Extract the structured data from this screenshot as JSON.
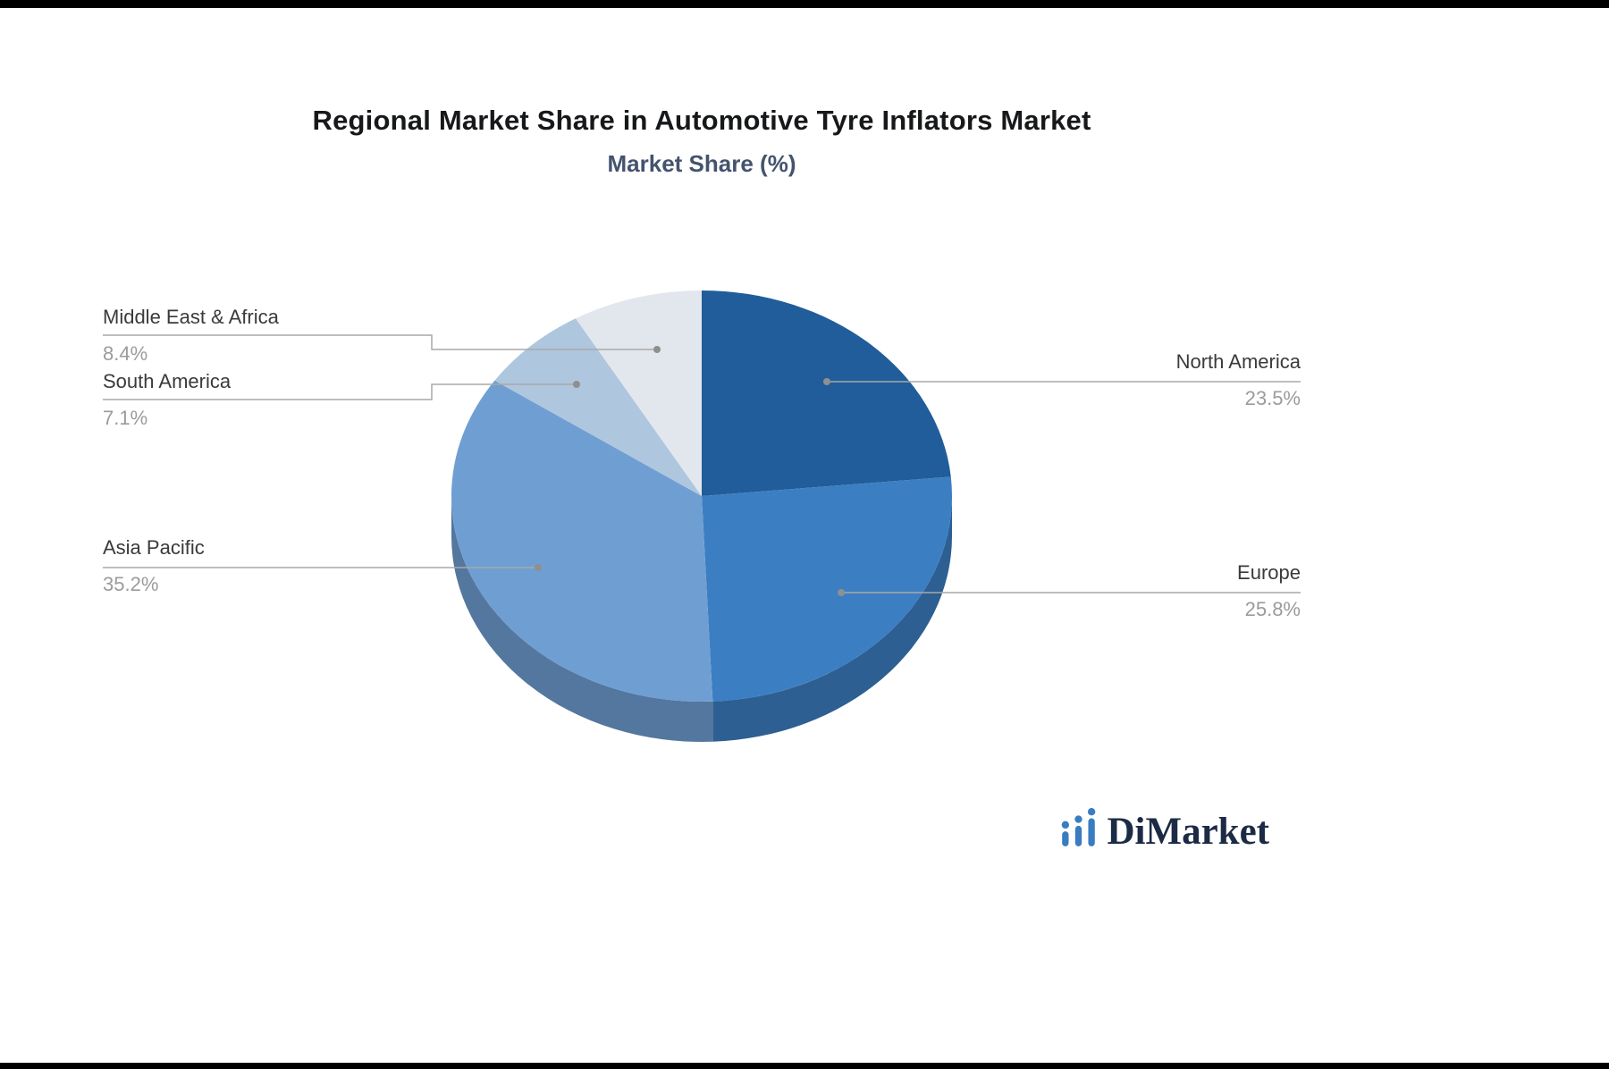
{
  "chart_data": {
    "type": "pie",
    "style": "3d-pie",
    "title": "Regional Market Share in Automotive Tyre Inflators Market",
    "subtitle": "Market Share (%)",
    "unit": "%",
    "legend_position": "callout-labels",
    "series": [
      {
        "label": "North America",
        "value": 23.5,
        "display": "23.5%",
        "color": "#205d9a"
      },
      {
        "label": "Europe",
        "value": 25.8,
        "display": "25.8%",
        "color": "#3c7ec2"
      },
      {
        "label": "Asia Pacific",
        "value": 35.2,
        "display": "35.2%",
        "color": "#6f9fd2"
      },
      {
        "label": "South America",
        "value": 7.1,
        "display": "7.1%",
        "color": "#aec6de"
      },
      {
        "label": "Middle East & Africa",
        "value": 8.4,
        "display": "8.4%",
        "color": "#e2e7ed"
      }
    ],
    "leader_line_color": "#a8a8a8",
    "label_text_color": "#3a3a3a",
    "value_text_color": "#9b9b9b"
  },
  "brand": {
    "name": "DiMarket",
    "icon": "bar-chart-logo-icon",
    "text_color": "#1c2b45",
    "icon_color": "#3a7cc1"
  }
}
